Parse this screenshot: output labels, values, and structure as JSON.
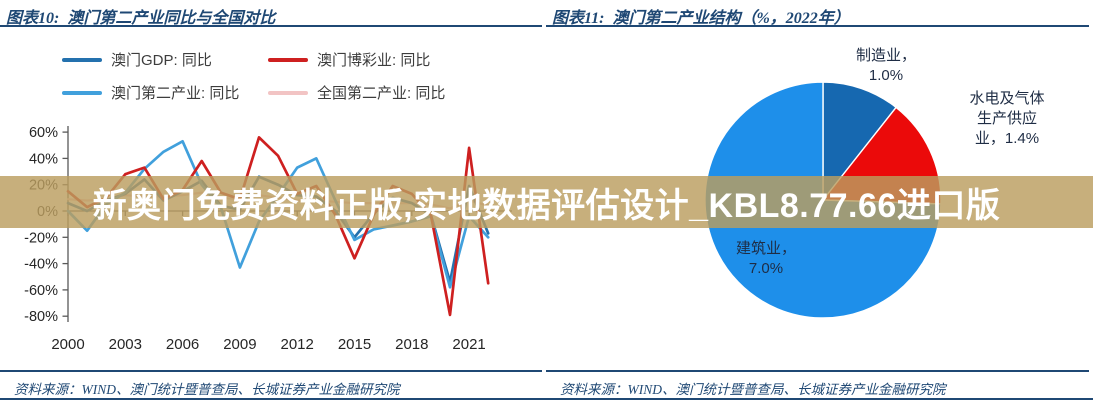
{
  "left_panel": {
    "title_id": "图表10:",
    "title_text": "澳门第二产业同比与全国对比",
    "source": "资料来源：WIND、澳门统计暨普查局、长城证券产业金融研究院"
  },
  "right_panel": {
    "title_id": "图表11:",
    "title_text": "澳门第二产业结构（%，2022年）",
    "source": "资料来源：WIND、澳门统计暨普查局、长城证券产业金融研究院"
  },
  "watermark": {
    "text": "新奥门免费资料正版,实地数据评估设计_KBL8.77.66进口版",
    "band_color": "rgba(187,157,95,0.82)",
    "text_color": "#ffffff"
  },
  "colors": {
    "navy": "#1F4874",
    "macau_gdp": "#2471AE",
    "macau_gaming": "#CE2020",
    "macau_secondary": "#41A0DC",
    "national_secondary": "#F2C4C4",
    "pie_manufacturing": "#1668B0",
    "pie_utilities": "#EB0A0A",
    "pie_construction": "#1E8FEA"
  },
  "chart_data": [
    {
      "type": "line",
      "title": "澳门第二产业同比与全国对比",
      "unit": "%",
      "grid": false,
      "legend_position": "top",
      "x": [
        2000,
        2001,
        2002,
        2003,
        2004,
        2005,
        2006,
        2007,
        2008,
        2009,
        2010,
        2011,
        2012,
        2013,
        2014,
        2015,
        2016,
        2017,
        2018,
        2019,
        2020,
        2021,
        2022
      ],
      "x_tick_years": [
        2000,
        2003,
        2006,
        2009,
        2012,
        2015,
        2018,
        2021
      ],
      "x_tick_labels": [
        "2000",
        "2003",
        "2006",
        "2009",
        "2012",
        "2015",
        "2018",
        "2021"
      ],
      "y_tick_values": [
        60,
        40,
        20,
        0,
        -20,
        -40,
        -60,
        -80
      ],
      "y_tick_labels": [
        "60%",
        "40%",
        "20%",
        "0%",
        "-20%",
        "-40%",
        "-60%",
        "-80%"
      ],
      "ylim": [
        -88,
        66
      ],
      "series": [
        {
          "key": "macau-gdp",
          "name": "澳门GDP: 同比",
          "color": "#2471AE",
          "values": [
            6,
            0,
            8,
            13,
            24,
            8,
            15,
            23,
            4,
            1,
            26,
            20,
            12,
            11,
            0,
            -20,
            -2,
            10,
            6,
            -3,
            -54,
            19,
            -17
          ]
        },
        {
          "key": "macau-gaming",
          "name": "澳门博彩业: 同比",
          "color": "#CE2020",
          "values": [
            15,
            3,
            10,
            28,
            33,
            9,
            16,
            38,
            14,
            9,
            56,
            42,
            13,
            19,
            -3,
            -36,
            -3,
            19,
            13,
            -3,
            -79,
            48,
            -55
          ]
        },
        {
          "key": "macau-secondary",
          "name": "澳门第二产业: 同比",
          "color": "#41A0DC",
          "values": [
            0,
            -15,
            5,
            14,
            32,
            45,
            53,
            20,
            3,
            -43,
            -8,
            12,
            33,
            40,
            8,
            -22,
            -14,
            -11,
            -8,
            -4,
            -58,
            -4,
            -20
          ]
        },
        {
          "key": "national-secondary",
          "name": "全国第二产业: 同比",
          "color": "#F2C4C4",
          "values": [
            9,
            8,
            9,
            12,
            11,
            11,
            12,
            14,
            10,
            9,
            12,
            10,
            8,
            8,
            7,
            6,
            6,
            6,
            6,
            5,
            2,
            8,
            4
          ]
        }
      ]
    },
    {
      "type": "pie",
      "title": "澳门第二产业结构（%，2022年）",
      "unit": "%",
      "start_angle": "top",
      "direction": "clockwise",
      "slices": [
        {
          "key": "manufacturing",
          "label": "制造业",
          "value": 1.0,
          "color": "#1668B0",
          "display_lines": [
            "制造业，",
            "1.0%"
          ]
        },
        {
          "key": "utilities",
          "label": "水电及气体生产供应业",
          "value": 1.4,
          "color": "#EB0A0A",
          "display_lines": [
            "水电及气体",
            "生产供应",
            "业，1.4%"
          ]
        },
        {
          "key": "construction",
          "label": "建筑业",
          "value": 7.0,
          "color": "#1E8FEA",
          "display_lines": [
            "建筑业，",
            "7.0%"
          ]
        }
      ]
    }
  ]
}
